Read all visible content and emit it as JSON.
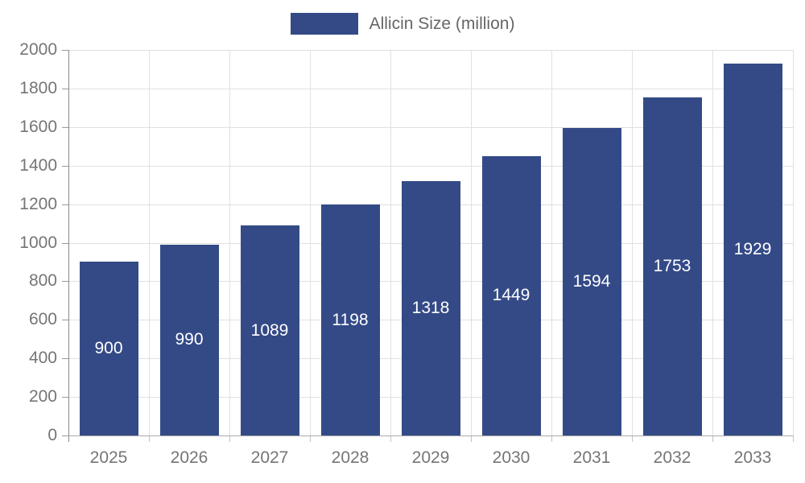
{
  "chart_data": {
    "type": "bar",
    "title": "",
    "legend": "Allicin Size (million)",
    "categories": [
      "2025",
      "2026",
      "2027",
      "2028",
      "2029",
      "2030",
      "2031",
      "2032",
      "2033"
    ],
    "values": [
      900,
      990,
      1089,
      1198,
      1318,
      1449,
      1594,
      1753,
      1929
    ],
    "xlabel": "",
    "ylabel": "",
    "ylim": [
      0,
      2000
    ],
    "ytick_step": 200,
    "grid": "on",
    "legend_position": "top-center",
    "value_labels": "inside-center-white",
    "colors": {
      "bar": "#344a87",
      "value_label": "#ffffff",
      "axis_text": "#757575",
      "legend_text": "#666666",
      "gridline": "#e0e0e0",
      "y_axis_line": "#8a8a8a",
      "x_axis_line": "#aaaaaa"
    }
  }
}
